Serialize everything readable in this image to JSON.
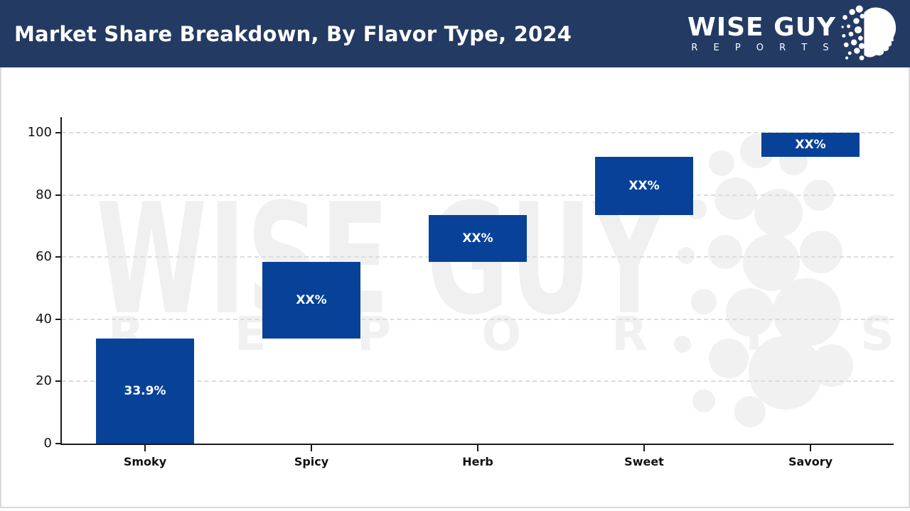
{
  "header": {
    "title": "Market Share Breakdown, By Flavor Type, 2024",
    "bg_color": "#233a63",
    "logo": {
      "line1": "WISE GUY",
      "line2": "R E P O R T S"
    }
  },
  "watermark": {
    "line1": "WISE GUY",
    "line2": "R E P O R T S"
  },
  "chart_data": {
    "type": "bar",
    "subtype": "waterfall",
    "title": "Market Share Breakdown, By Flavor Type, 2024",
    "categories": [
      "Smoky",
      "Spicy",
      "Herb",
      "Sweet",
      "Savory"
    ],
    "segments": [
      {
        "category": "Smoky",
        "start": 0,
        "end": 33.9,
        "label": "33.9%"
      },
      {
        "category": "Spicy",
        "start": 33.9,
        "end": 58.4,
        "label": "XX%"
      },
      {
        "category": "Herb",
        "start": 58.4,
        "end": 73.6,
        "label": "XX%"
      },
      {
        "category": "Sweet",
        "start": 73.6,
        "end": 92.2,
        "label": "XX%"
      },
      {
        "category": "Savory",
        "start": 92.2,
        "end": 100,
        "label": "XX%"
      }
    ],
    "xlabel": "",
    "ylabel": "",
    "yticks": [
      0,
      20,
      40,
      60,
      80,
      100
    ],
    "ylim": [
      0,
      105
    ],
    "grid": "horizontal-dashed",
    "legend": "none",
    "bar_color": "#084198",
    "grid_color": "#dcdcdc",
    "axis_color": "#1a1a1a"
  }
}
